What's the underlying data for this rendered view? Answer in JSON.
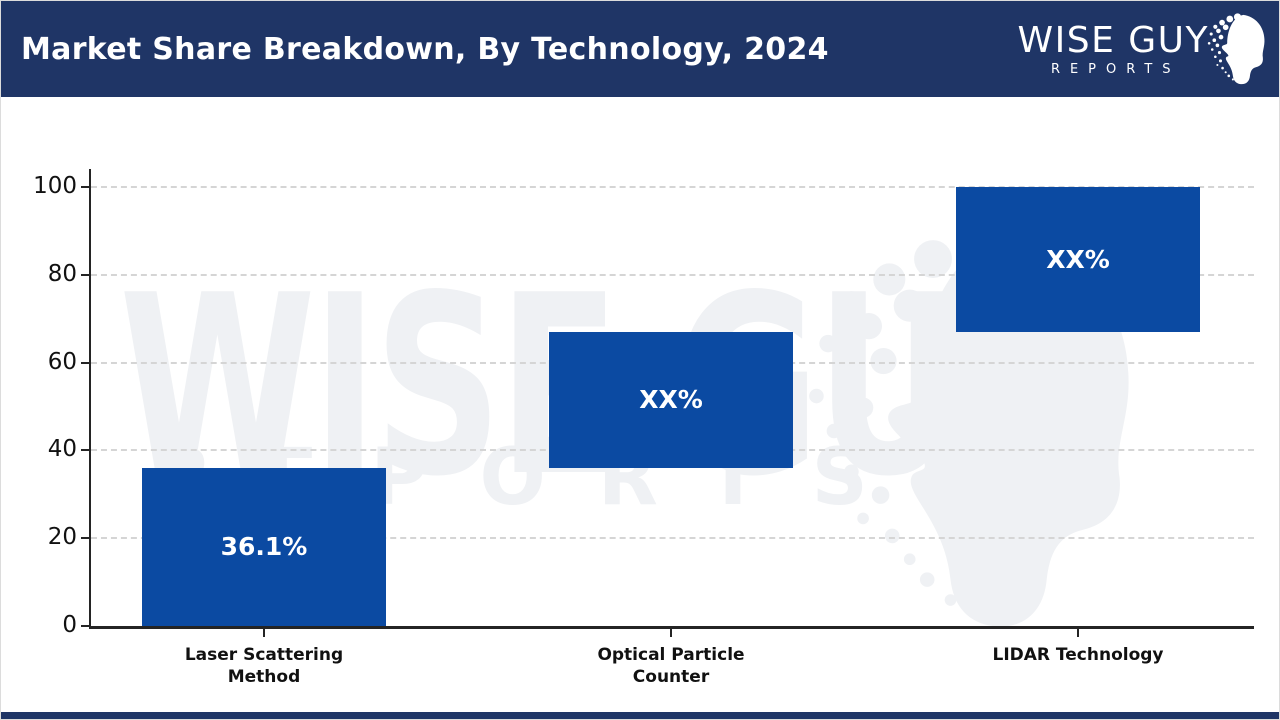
{
  "header": {
    "title": "Market Share Breakdown, By Technology, 2024",
    "logo": {
      "name": "WISE GUY",
      "sub": "REPORTS"
    }
  },
  "watermark": {
    "line1": "WISE GUY",
    "line2": "REPORTS"
  },
  "colors": {
    "header_bg": "#1f3566",
    "bar": "#0b4aa2",
    "bar_label": "#ffffff",
    "watermark": "#eff1f4",
    "gridline": "#d5d5d5",
    "axis": "#242424"
  },
  "chart_data": {
    "type": "bar",
    "subtype": "waterfall",
    "title": "Market Share Breakdown, By Technology, 2024",
    "categories": [
      "Laser Scattering\nMethod",
      "Optical Particle\nCounter",
      "LIDAR Technology"
    ],
    "bars": [
      {
        "category": "Laser Scattering Method",
        "start": 0,
        "end": 36.1,
        "label": "36.1%"
      },
      {
        "category": "Optical Particle Counter",
        "start": 36.1,
        "end": 67,
        "label": "XX%"
      },
      {
        "category": "LIDAR Technology",
        "start": 67,
        "end": 100,
        "label": "XX%"
      }
    ],
    "y_ticks": [
      0,
      20,
      40,
      60,
      80,
      100
    ],
    "ylim": [
      0,
      104
    ],
    "xlabel": "",
    "ylabel": "",
    "grid": "horizontal-dashed",
    "legend": "none",
    "bar_color": "#0b4aa2"
  }
}
